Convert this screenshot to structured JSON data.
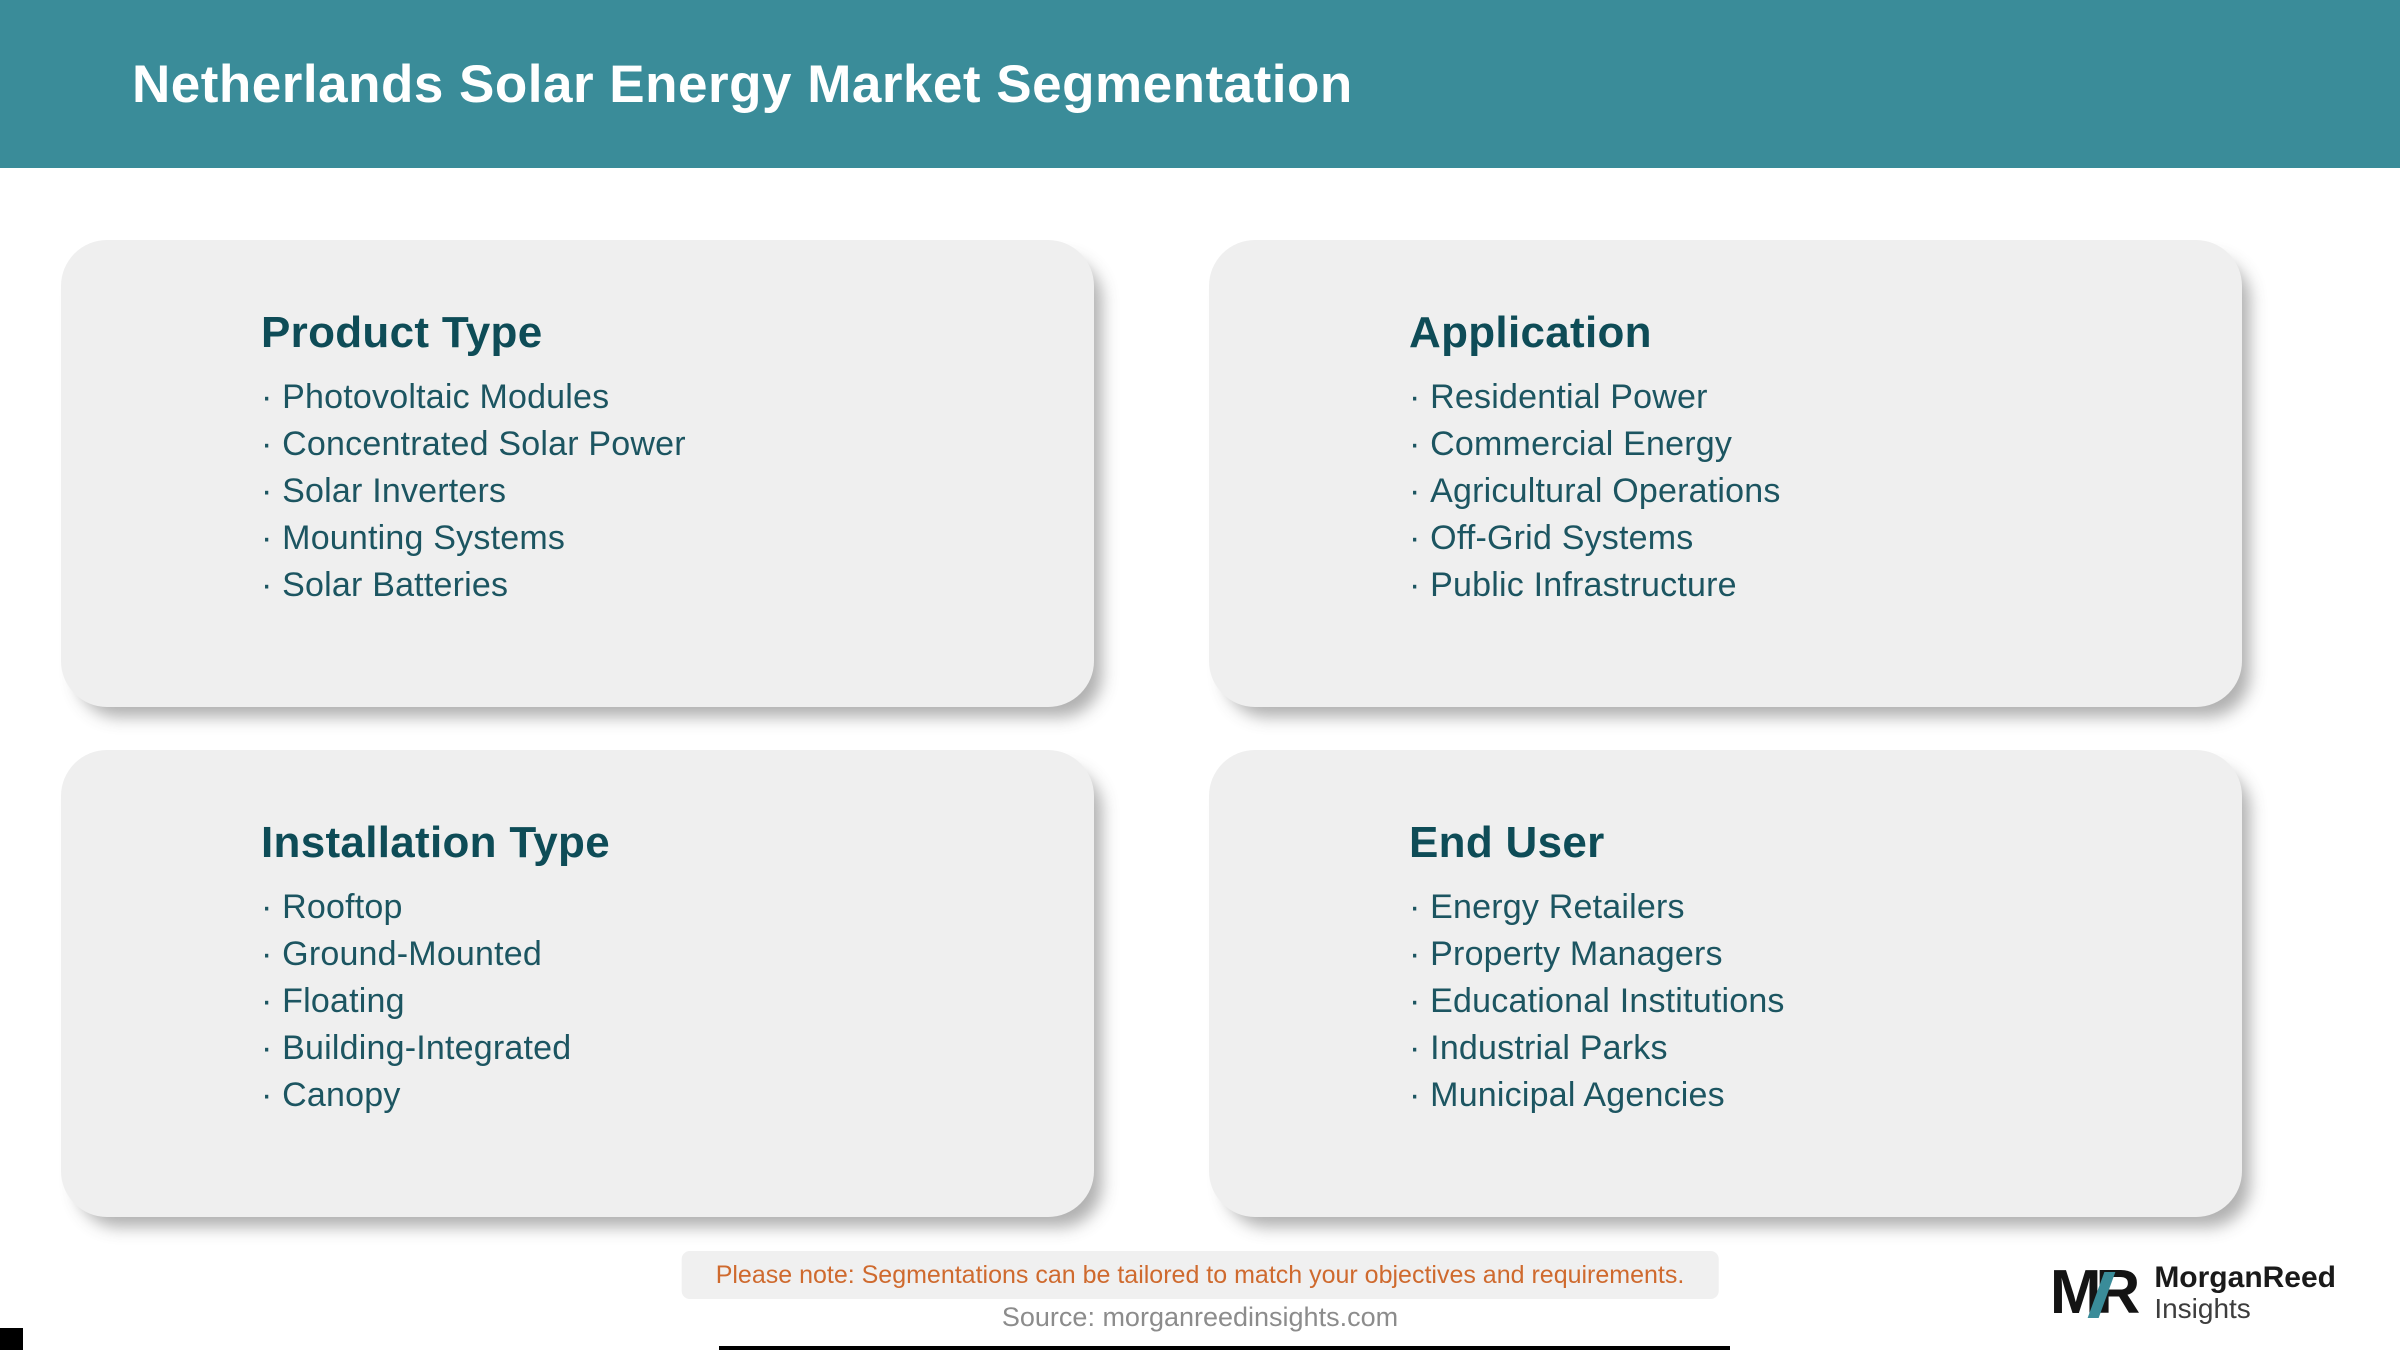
{
  "header": {
    "title": "Netherlands Solar Energy Market Segmentation"
  },
  "cards": [
    {
      "title": "Product Type",
      "items": [
        "Photovoltaic Modules",
        "Concentrated Solar Power",
        "Solar Inverters",
        "Mounting Systems",
        "Solar Batteries"
      ]
    },
    {
      "title": "Application",
      "items": [
        "Residential Power",
        "Commercial Energy",
        "Agricultural Operations",
        "Off-Grid Systems",
        "Public Infrastructure"
      ]
    },
    {
      "title": "Installation Type",
      "items": [
        "Rooftop",
        "Ground-Mounted",
        "Floating",
        "Building-Integrated",
        "Canopy"
      ]
    },
    {
      "title": "End User",
      "items": [
        "Energy Retailers",
        "Property Managers",
        "Educational Institutions",
        "Industrial Parks",
        "Municipal Agencies"
      ]
    }
  ],
  "note": {
    "text": "Please note: Segmentations can be tailored to match your objectives and requirements."
  },
  "source": {
    "text": "Source: morganreedinsights.com"
  },
  "logo": {
    "monogram": "MR",
    "name": "MorganReed",
    "sub": "Insights"
  },
  "colors": {
    "header_bg": "#3a8c99",
    "card_bg": "#efefef",
    "title_text": "#0e4c57",
    "body_text": "#1c5561",
    "note_text": "#cf6a2e",
    "source_text": "#8c8c8c"
  }
}
